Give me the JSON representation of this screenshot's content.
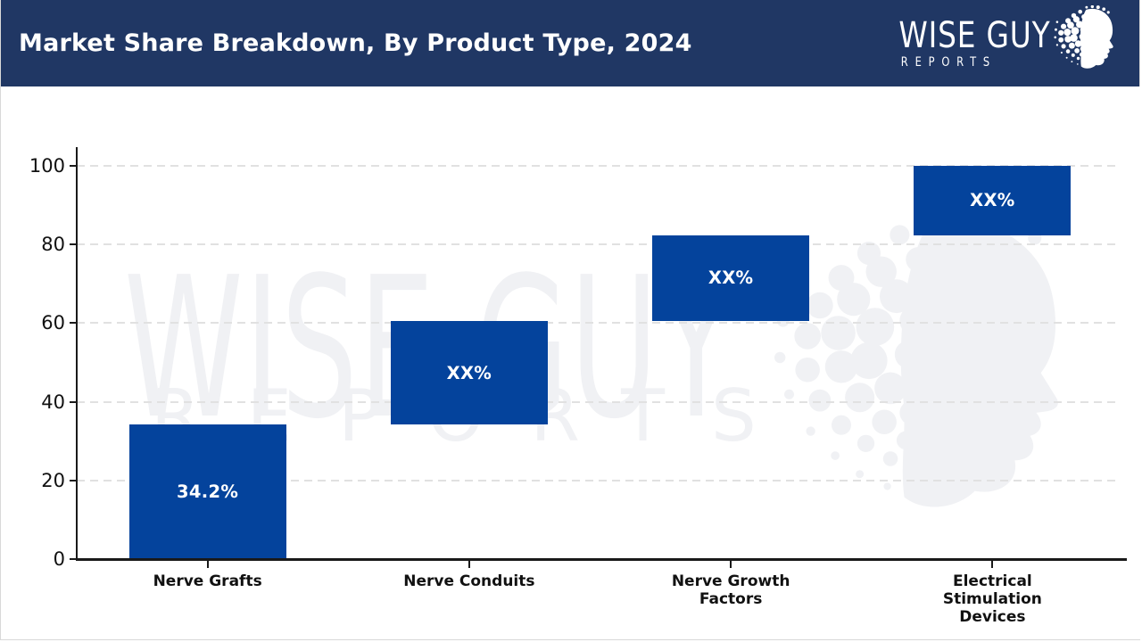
{
  "header": {
    "title": "Market Share Breakdown, By Product Type, 2024",
    "bg_color": "#203764",
    "logo": {
      "line1": "WISE GUY",
      "line2": "REPORTS"
    }
  },
  "watermark": {
    "line1": "WISE GUY",
    "line2": "REPORTS"
  },
  "chart_data": {
    "type": "bar",
    "variant": "floating-waterfall",
    "title": "Market Share Breakdown, By Product Type, 2024",
    "categories": [
      "Nerve Grafts",
      "Nerve Conduits",
      "Nerve Growth\nFactors",
      "Electrical\nStimulation\nDevices"
    ],
    "segments": [
      {
        "category": "Nerve Grafts",
        "start": 0,
        "end": 34.2,
        "label": "34.2%"
      },
      {
        "category": "Nerve Conduits",
        "start": 34.2,
        "end": 60.5,
        "label": "XX%"
      },
      {
        "category": "Nerve Growth Factors",
        "start": 60.5,
        "end": 82.4,
        "label": "XX%"
      },
      {
        "category": "Electrical Stimulation Devices",
        "start": 82.4,
        "end": 100,
        "label": "XX%"
      }
    ],
    "ylim": [
      0,
      100
    ],
    "yticks": [
      0,
      20,
      40,
      60,
      80,
      100
    ],
    "grid": "horizontal-dashed",
    "grid_color": "#e1e1e1",
    "bar_color": "#04439c",
    "bar_label_color": "#ffffff",
    "axis_color": "#1a1a1a"
  }
}
